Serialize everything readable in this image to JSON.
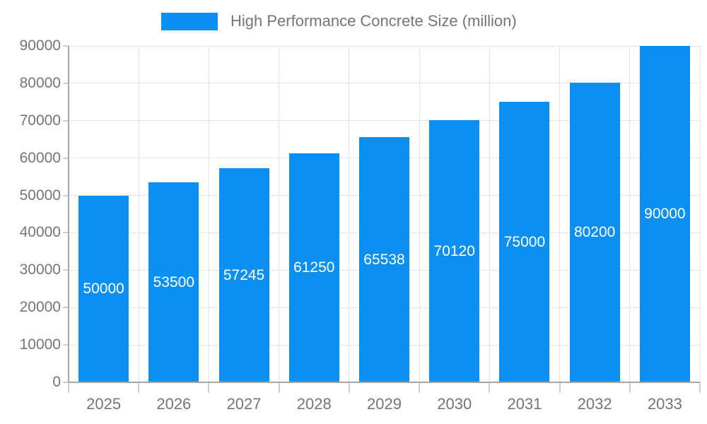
{
  "chart_data": {
    "type": "bar",
    "title": "High Performance Concrete Size (million)",
    "categories": [
      "2025",
      "2026",
      "2027",
      "2028",
      "2029",
      "2030",
      "2031",
      "2032",
      "2033"
    ],
    "values": [
      50000,
      53500,
      57245,
      61250,
      65538,
      70120,
      75000,
      80200,
      90000
    ],
    "xlabel": "",
    "ylabel": "",
    "ylim": [
      0,
      90000
    ],
    "ytick_step": 10000,
    "ytick_labels": [
      "0",
      "10000",
      "20000",
      "30000",
      "40000",
      "50000",
      "60000",
      "70000",
      "80000",
      "90000"
    ],
    "grid": true,
    "legend_position": "top",
    "value_labels": "inside-center-white"
  },
  "colors": {
    "bar": "#0b90f2",
    "value_label": "#ffffff",
    "axis_text": "#757575",
    "grid": "#e4e4e4",
    "axis_line": "#a6a6a6",
    "tick": "#cfcfcf",
    "background": "#ffffff"
  }
}
